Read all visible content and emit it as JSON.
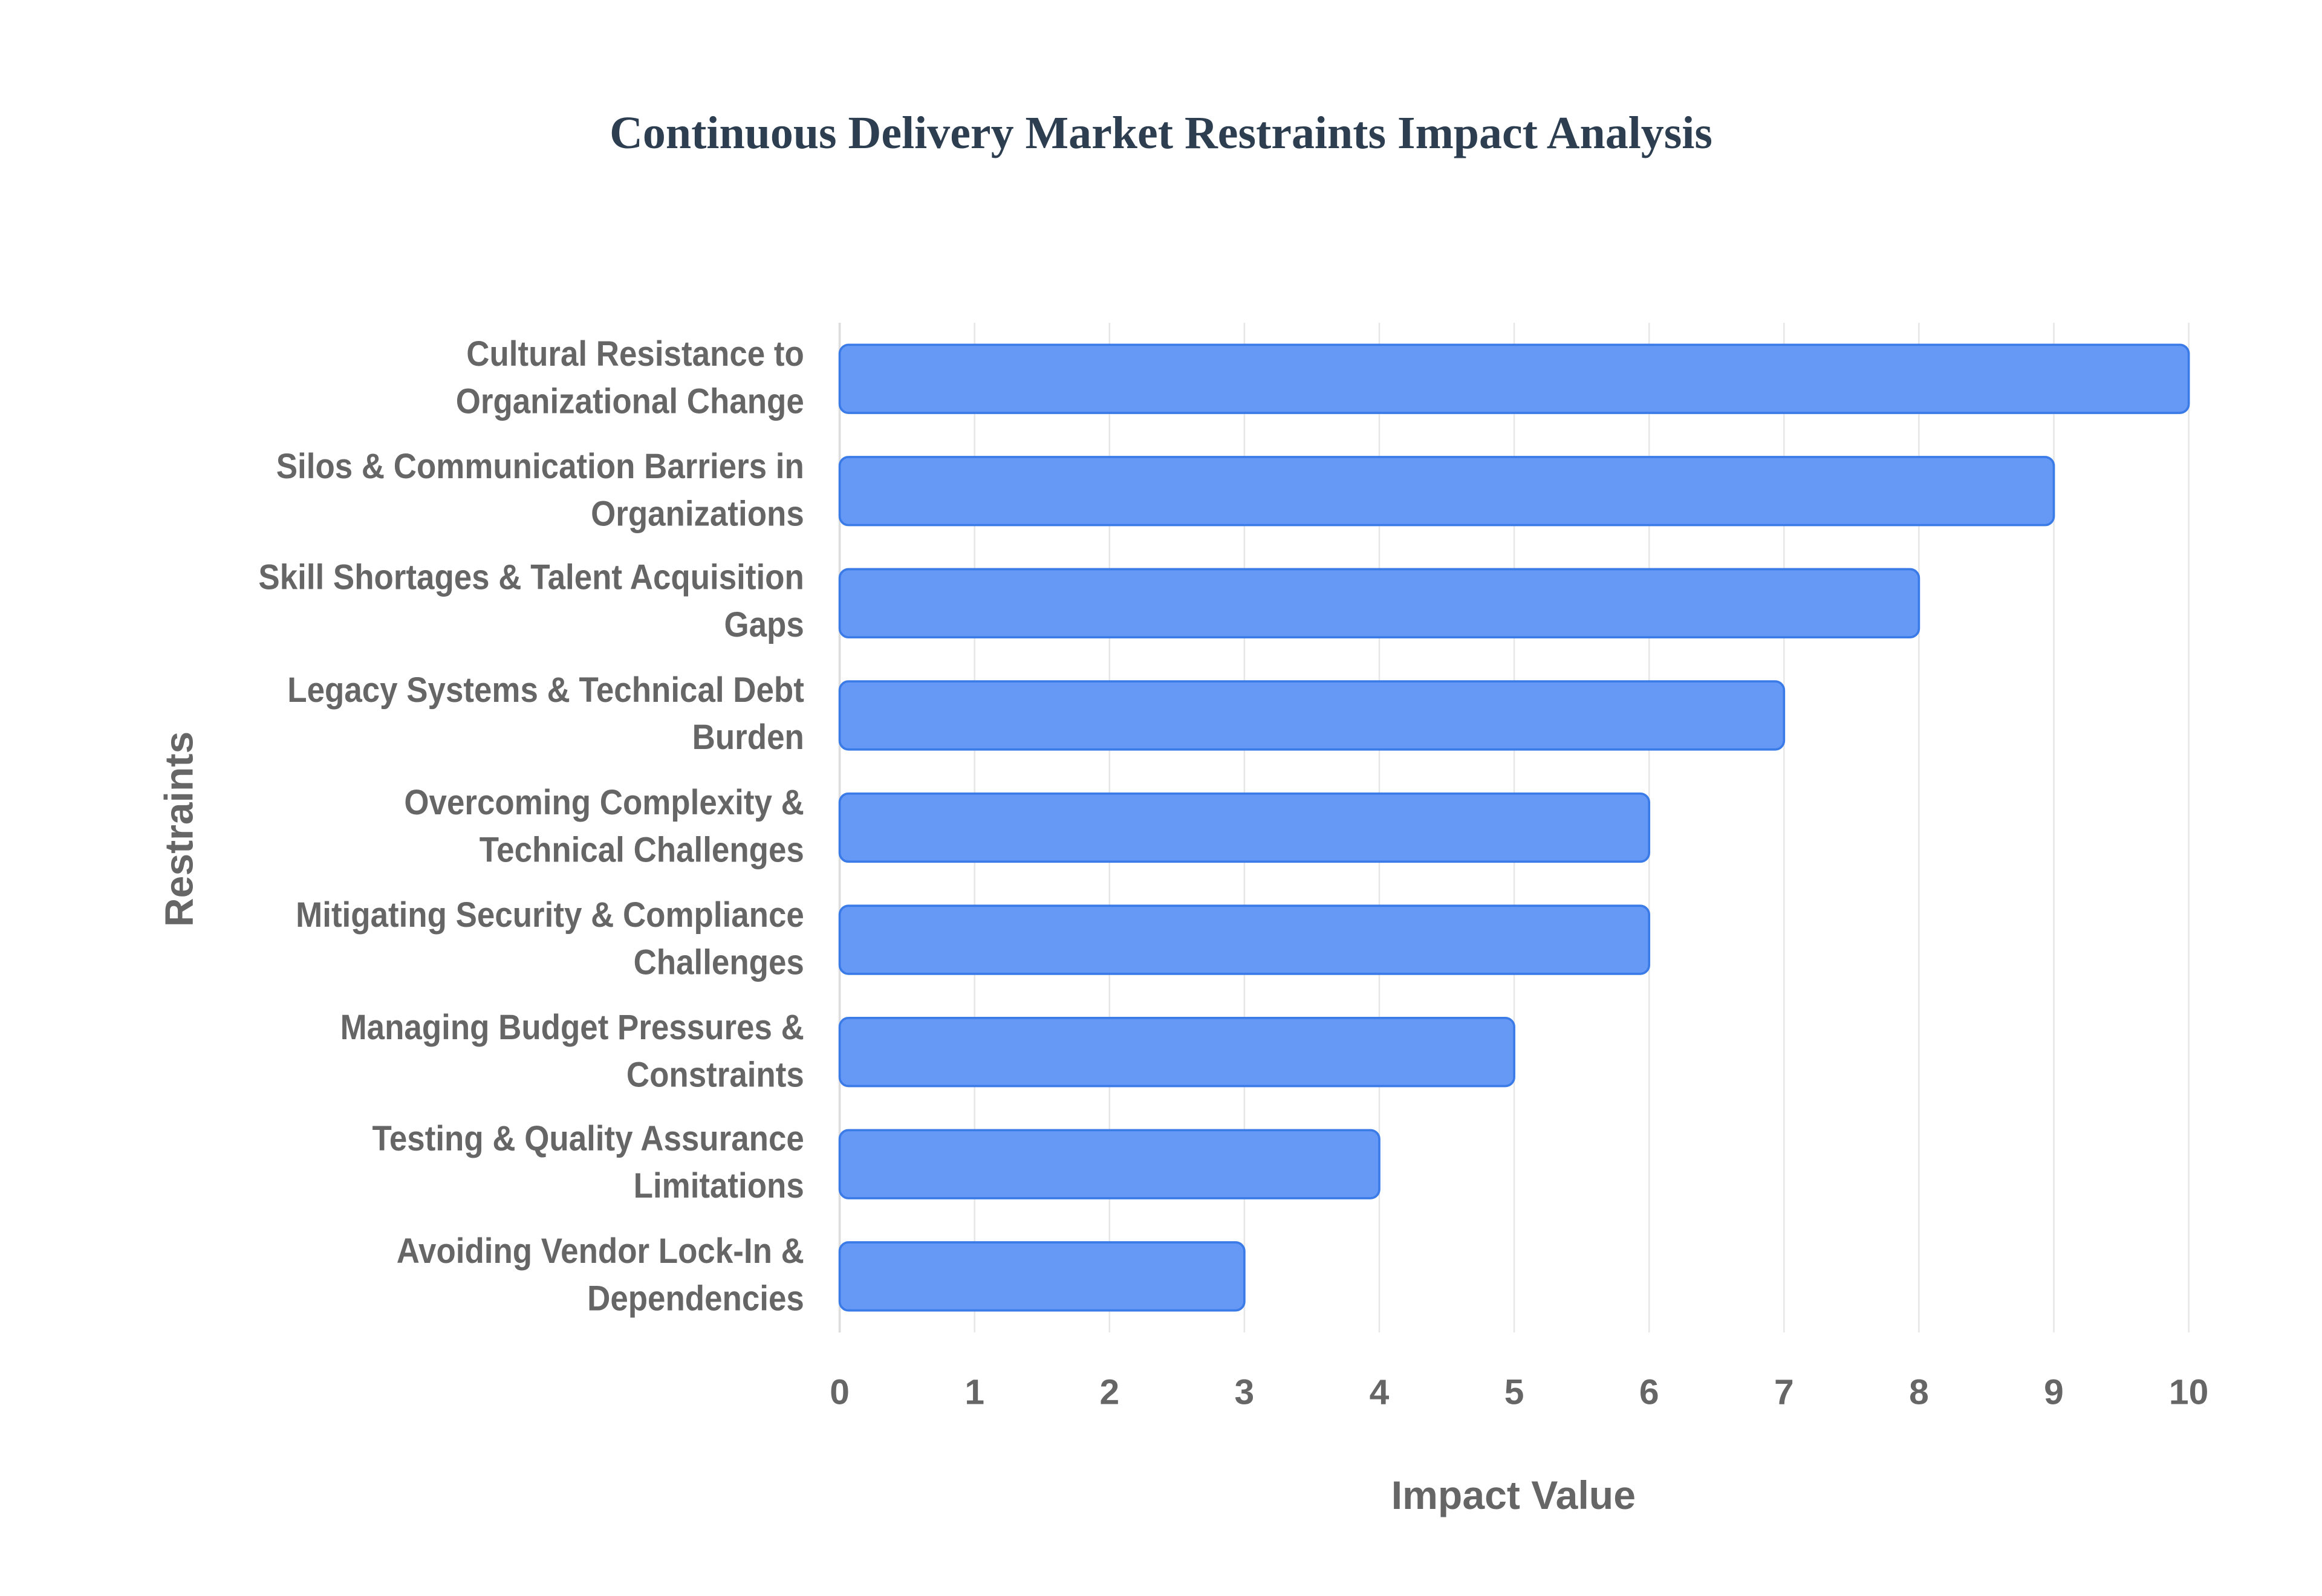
{
  "chart_data": {
    "type": "bar",
    "orientation": "horizontal",
    "title": "Continuous Delivery Market Restraints Impact Analysis",
    "x_label": "Impact Value",
    "y_label": "Restraints",
    "categories": [
      "Cultural Resistance to Organizational Change",
      "Silos & Communication Barriers in Organizations",
      "Skill Shortages & Talent Acquisition Gaps",
      "Legacy Systems & Technical Debt Burden",
      "Overcoming Complexity & Technical Challenges",
      "Mitigating Security & Compliance Challenges",
      "Managing Budget Pressures & Constraints",
      "Testing & Quality Assurance Limitations",
      "Avoiding Vendor Lock-In & Dependencies"
    ],
    "values": [
      10,
      9,
      8,
      7,
      6,
      6,
      5,
      4,
      3
    ],
    "color": "#6699f5",
    "edge_color": "#3b7be8",
    "xlim": [
      0,
      10
    ],
    "xticks": [
      0,
      1,
      2,
      3,
      4,
      5,
      6,
      7,
      8,
      9,
      10
    ],
    "grid": true
  }
}
